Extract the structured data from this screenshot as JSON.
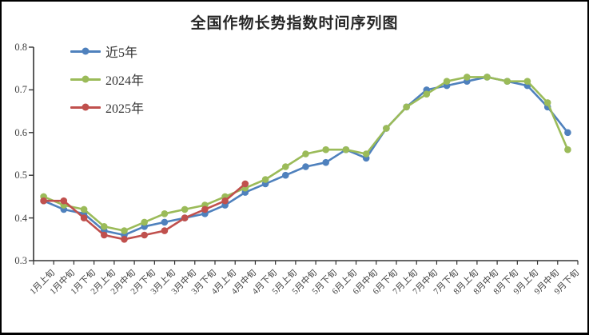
{
  "title": "全国作物长势指数时间序列图",
  "chart_data": {
    "type": "line",
    "title": "全国作物长势指数时间序列图",
    "categories": [
      "1月上旬",
      "1月中旬",
      "1月下旬",
      "2月上旬",
      "2月中旬",
      "2月下旬",
      "3月上旬",
      "3月中旬",
      "3月下旬",
      "4月上旬",
      "4月中旬",
      "4月下旬",
      "5月上旬",
      "5月中旬",
      "5月下旬",
      "6月上旬",
      "6月中旬",
      "6月下旬",
      "7月上旬",
      "7月中旬",
      "7月下旬",
      "8月上旬",
      "8月中旬",
      "8月下旬",
      "9月上旬",
      "9月中旬",
      "9月下旬"
    ],
    "series": [
      {
        "name": "近5年",
        "color": "#4f81bd",
        "values": [
          0.44,
          0.42,
          0.41,
          0.37,
          0.36,
          0.38,
          0.39,
          0.4,
          0.41,
          0.43,
          0.46,
          0.48,
          0.5,
          0.52,
          0.53,
          0.56,
          0.54,
          0.61,
          0.66,
          0.7,
          0.71,
          0.72,
          0.73,
          0.72,
          0.71,
          0.66,
          0.6
        ]
      },
      {
        "name": "2024年",
        "color": "#9bbb59",
        "values": [
          0.45,
          0.43,
          0.42,
          0.38,
          0.37,
          0.39,
          0.41,
          0.42,
          0.43,
          0.45,
          0.47,
          0.49,
          0.52,
          0.55,
          0.56,
          0.56,
          0.55,
          0.61,
          0.66,
          0.69,
          0.72,
          0.73,
          0.73,
          0.72,
          0.72,
          0.67,
          0.56
        ]
      },
      {
        "name": "2025年",
        "color": "#c0504d",
        "values": [
          0.44,
          0.44,
          0.4,
          0.36,
          0.35,
          0.36,
          0.37,
          0.4,
          0.42,
          0.44,
          0.48
        ]
      }
    ],
    "xlabel": "",
    "ylabel": "",
    "ylim": [
      0.3,
      0.8
    ],
    "yticks": [
      "0.3",
      "0.4",
      "0.5",
      "0.6",
      "0.7",
      "0.8"
    ],
    "grid": false,
    "legend_position": "inside-top-left",
    "axis_color": "#333333",
    "tick_label_color": "#404040"
  }
}
